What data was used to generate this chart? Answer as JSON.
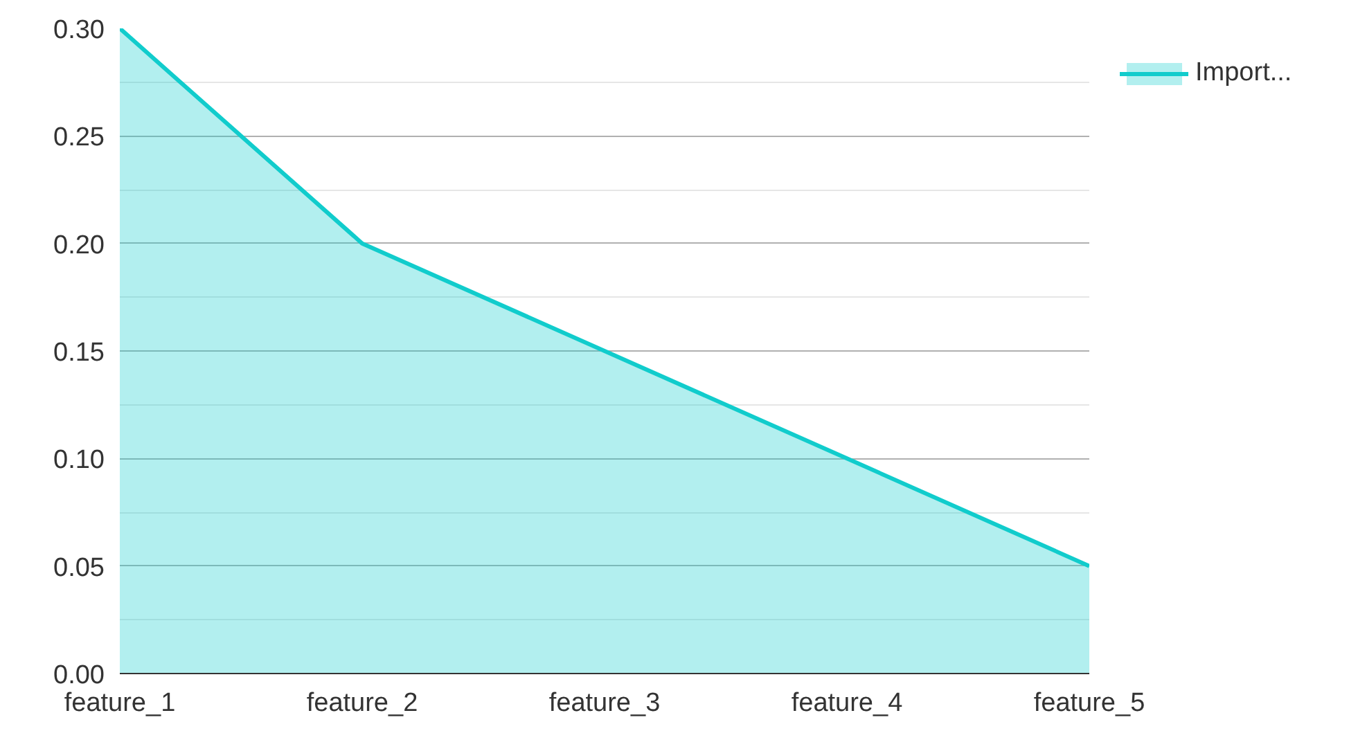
{
  "chart_data": {
    "type": "area",
    "categories": [
      "feature_1",
      "feature_2",
      "feature_3",
      "feature_4",
      "feature_5"
    ],
    "series": [
      {
        "name": "Import...",
        "color": "#11cccc",
        "values": [
          0.3,
          0.2,
          0.15,
          0.1,
          0.05
        ]
      }
    ],
    "ylim": [
      0,
      0.3
    ],
    "yticks": [
      {
        "value": 0,
        "label": "0.00"
      },
      {
        "value": 0.05,
        "label": "0.05"
      },
      {
        "value": 0.1,
        "label": "0.10"
      },
      {
        "value": 0.15,
        "label": "0.15"
      },
      {
        "value": 0.2,
        "label": "0.20"
      },
      {
        "value": 0.25,
        "label": "0.25"
      },
      {
        "value": 0.3,
        "label": "0.30"
      }
    ],
    "grid": "y",
    "legend": "top right"
  }
}
